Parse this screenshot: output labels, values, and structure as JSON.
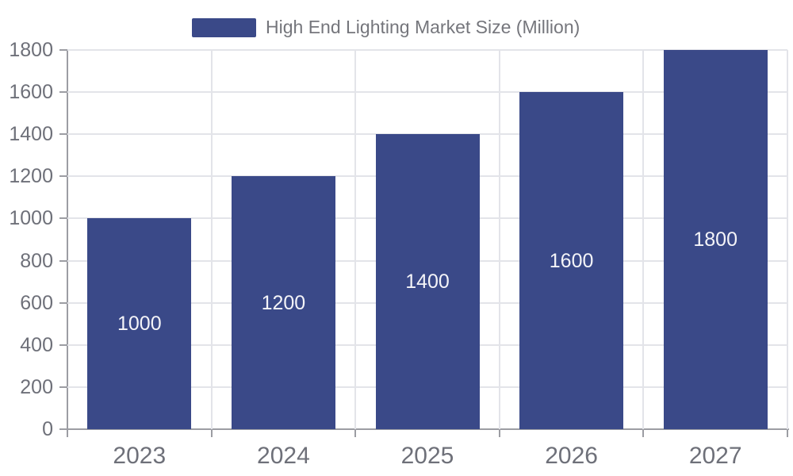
{
  "legend": {
    "label": "High End Lighting Market Size (Million)"
  },
  "colors": {
    "background": "#FFFFFF",
    "bar": "#3A4988",
    "axis_line": "#9C9DA3",
    "grid_line": "#E3E4E9",
    "tick_label": "#6E7079",
    "legend_text": "#75767C",
    "bar_label": "#F4F4F8"
  },
  "chart_data": {
    "type": "bar",
    "title": "",
    "xlabel": "",
    "ylabel": "",
    "categories": [
      "2023",
      "2024",
      "2025",
      "2026",
      "2027"
    ],
    "series": [
      {
        "name": "High End Lighting Market Size (Million)",
        "values": [
          1000,
          1200,
          1400,
          1600,
          1800
        ],
        "labels": [
          "1000",
          "1200",
          "1400",
          "1600",
          "1800"
        ]
      }
    ],
    "ylim": [
      0,
      1800
    ],
    "yticks": [
      0,
      200,
      400,
      600,
      800,
      1000,
      1200,
      1400,
      1600,
      1800
    ],
    "grid": true,
    "legend_position": "top"
  }
}
